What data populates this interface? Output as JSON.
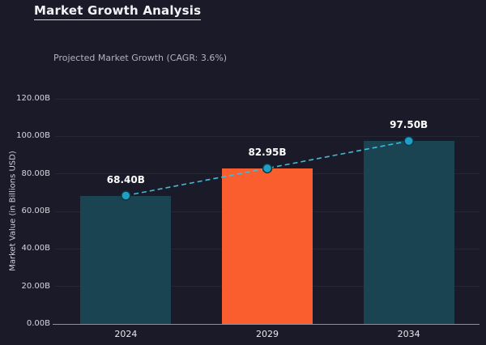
{
  "page": {
    "title": "Market Growth Analysis",
    "subtitle": "Projected Market Growth (CAGR: 3.6%)"
  },
  "chart_data": {
    "type": "bar",
    "title": "Market Growth Analysis",
    "subtitle": "Projected Market Growth (CAGR: 3.6%)",
    "categories": [
      "2024",
      "2029",
      "2034"
    ],
    "values": [
      68.4,
      82.95,
      97.5
    ],
    "value_labels": [
      "68.40B",
      "82.95B",
      "97.50B"
    ],
    "xlabel": "",
    "ylabel": "Market Value (in Billions USD)",
    "ylim": [
      0,
      120
    ],
    "yticks": [
      0,
      20,
      40,
      60,
      80,
      100,
      120
    ],
    "ytick_labels": [
      "0.00B",
      "20.00B",
      "40.00B",
      "60.00B",
      "80.00B",
      "100.00B",
      "120.00B"
    ],
    "grid": true,
    "legend": false,
    "trend_line_style": "dashed",
    "colors": {
      "background": "#1a1a28",
      "bar_colors": [
        "#1b4452",
        "#fa5e2f",
        "#1b4452"
      ],
      "trend_line": "#3fbcd9",
      "marker_fill": "#1f9fc4",
      "marker_edge": "#0e3644",
      "title_text": "#f2f2f5",
      "subtitle_text": "#b4b2c0",
      "axis_text": "#d6d6df"
    }
  }
}
